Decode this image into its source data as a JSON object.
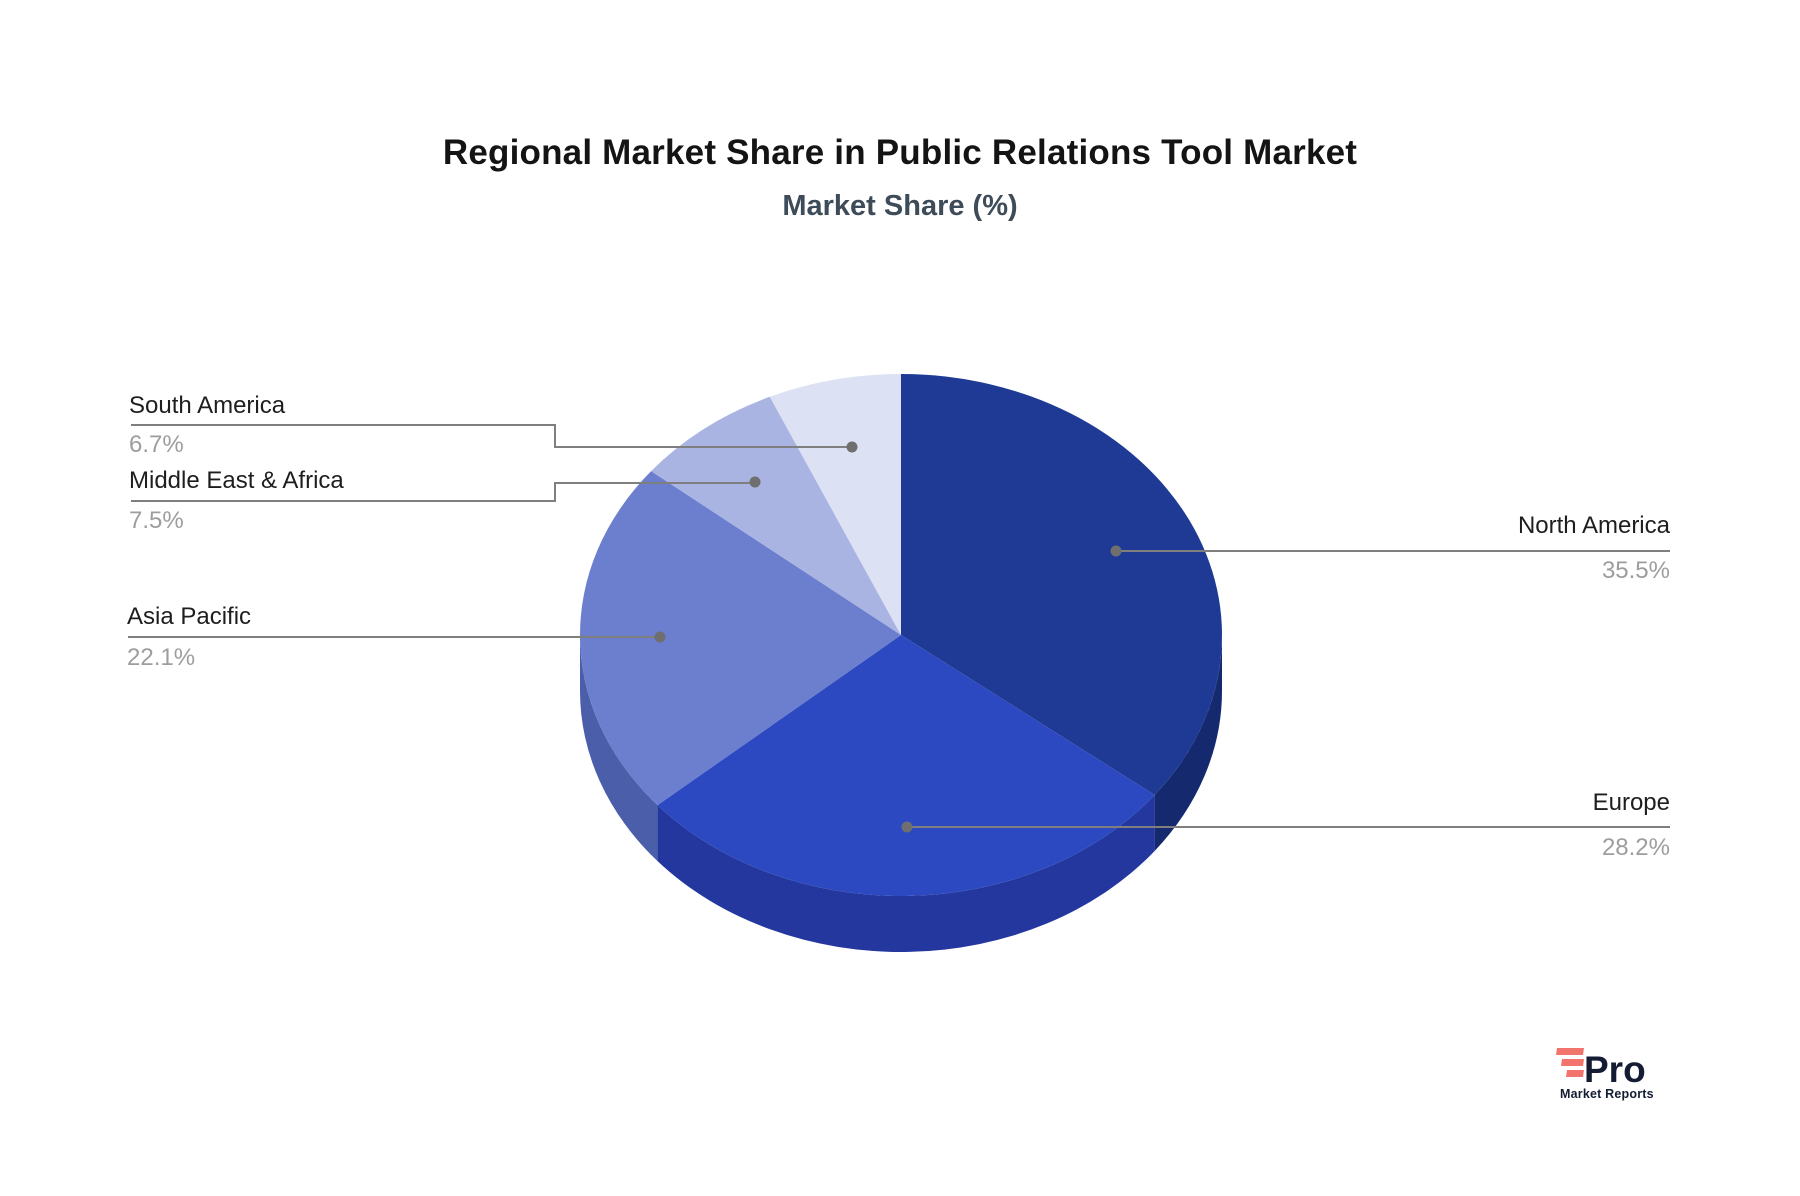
{
  "chart_data": {
    "type": "pie",
    "style": "3d-pie-with-callouts",
    "title": "Regional Market Share in Public Relations Tool Market",
    "subtitle": "Market Share (%)",
    "unit": "%",
    "start_angle_deg": 0,
    "direction": "clockwise",
    "slices": [
      {
        "label": "North America",
        "value": 35.5,
        "value_text": "35.5%",
        "color": "#1e3a94",
        "side_color": "#15296e"
      },
      {
        "label": "Europe",
        "value": 28.2,
        "value_text": "28.2%",
        "color": "#2c49c1",
        "side_color": "#23379e"
      },
      {
        "label": "Asia Pacific",
        "value": 22.1,
        "value_text": "22.1%",
        "color": "#6b7fce",
        "side_color": "#4b5ea9"
      },
      {
        "label": "Middle East & Africa",
        "value": 7.5,
        "value_text": "7.5%",
        "color": "#a9b4e3",
        "side_color": "#8a96c9"
      },
      {
        "label": "South America",
        "value": 6.7,
        "value_text": "6.7%",
        "color": "#dce1f4",
        "side_color": "#b8c0dd"
      }
    ],
    "callout_line_color": "#7f7f7f",
    "label_color": "#1e1e1e",
    "percent_color": "#9d9d9d"
  },
  "branding": {
    "logo_text": "Pro",
    "logo_tagline": "Market Reports",
    "logo_bar_color": "#f2756d",
    "logo_text_color": "#141c34"
  }
}
